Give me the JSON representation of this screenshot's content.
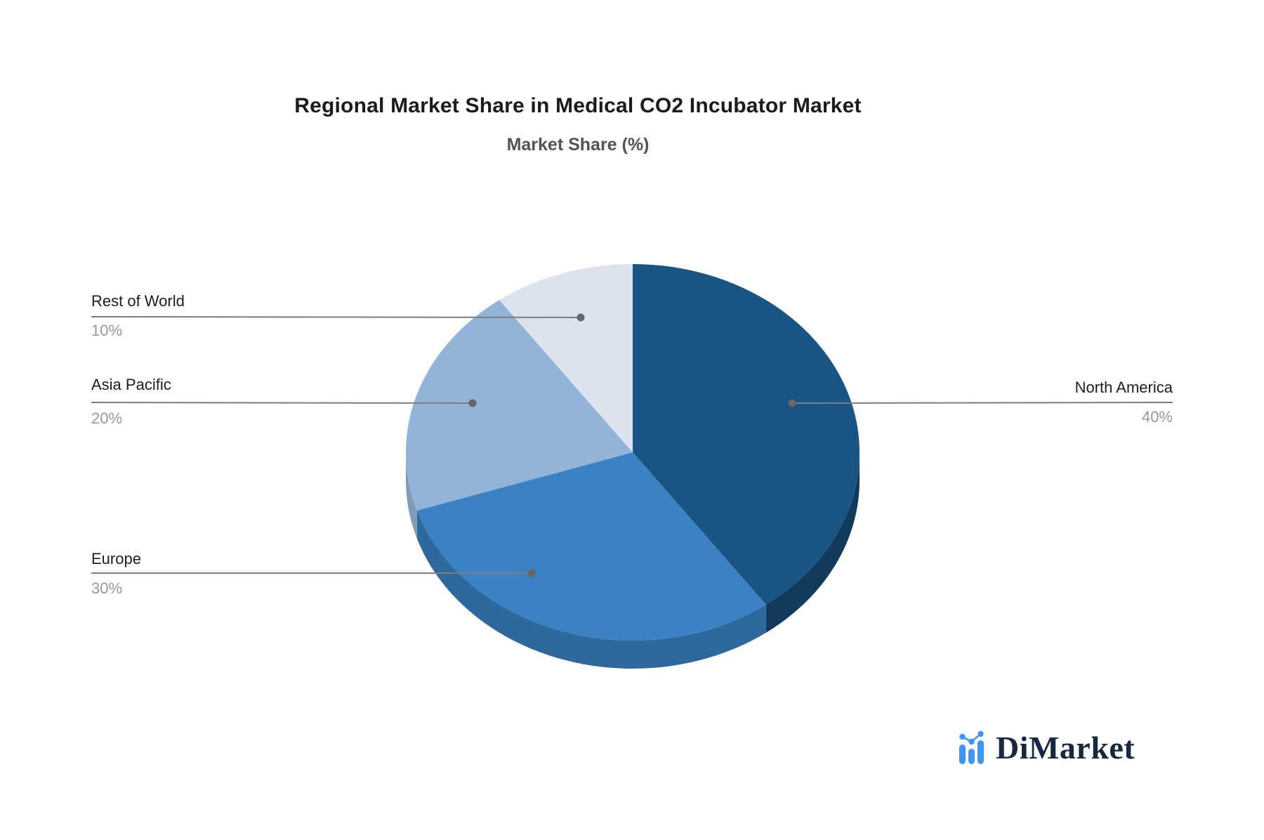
{
  "header": {
    "title": "Regional Market Share in Medical CO2 Incubator Market",
    "subtitle": "Market Share (%)"
  },
  "chart_data": {
    "type": "pie",
    "style": "3d",
    "title": "Regional Market Share in Medical CO2 Incubator Market",
    "subtitle": "Market Share (%)",
    "unit": "%",
    "start_angle_deg": 0,
    "direction": "clockwise",
    "legend_position": "callout-labels",
    "slices": [
      {
        "label": "North America",
        "value": 40,
        "value_label": "40%",
        "color": "#1A5483",
        "side_color": "#113A5C"
      },
      {
        "label": "Europe",
        "value": 30,
        "value_label": "30%",
        "color": "#3A82C4",
        "side_color": "#2F689C"
      },
      {
        "label": "Asia Pacific",
        "value": 20,
        "value_label": "20%",
        "color": "#93B4D9",
        "side_color": "#7F9CBA"
      },
      {
        "label": "Rest of World",
        "value": 10,
        "value_label": "10%",
        "color": "#DCE3EE",
        "side_color": "#C3CCD9"
      }
    ],
    "label_colors": {
      "name_text": "#1E1E20",
      "value_text": "#95989D",
      "leader_line": "#7E7E7E",
      "leader_dot": "#666666"
    }
  },
  "branding": {
    "logo_text": "DiMarket",
    "logo_icon": "mini-bar-line-chart-icon",
    "icon_color": "#4196F5",
    "text_color": "#1A2740"
  }
}
